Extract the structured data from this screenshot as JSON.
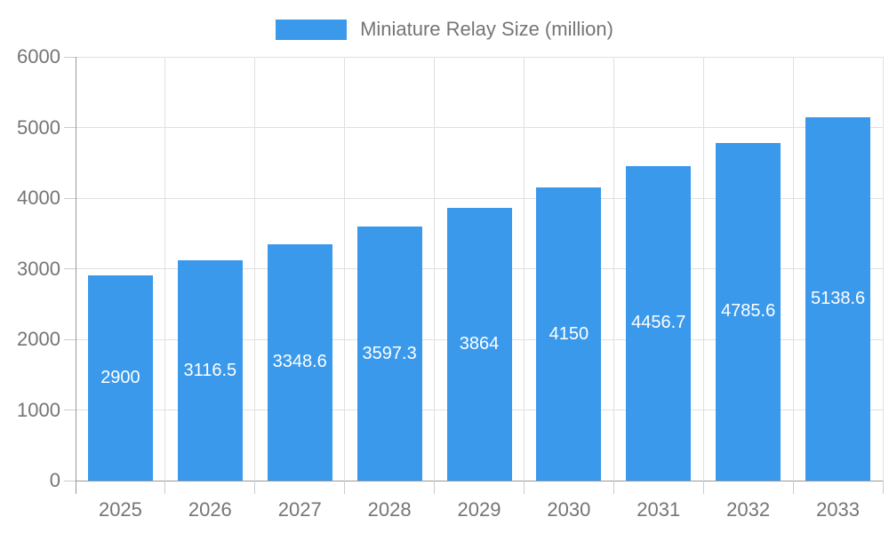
{
  "legend": {
    "label": "Miniature Relay Size (million)"
  },
  "colors": {
    "bar": "#3b99ec",
    "axis": "#999999",
    "gridline": "#e0e0e0",
    "tick": "#cccccc",
    "axis_label_text": "#757575",
    "value_label_text": "#ffffff",
    "background": "#ffffff"
  },
  "chart_data": {
    "type": "bar",
    "title": "",
    "xlabel": "",
    "ylabel": "",
    "series_name": "Miniature Relay Size (million)",
    "categories": [
      "2025",
      "2026",
      "2027",
      "2028",
      "2029",
      "2030",
      "2031",
      "2032",
      "2033"
    ],
    "values": [
      2900,
      3116.5,
      3348.6,
      3597.3,
      3864,
      4150,
      4456.7,
      4785.6,
      5138.6
    ],
    "ylim": [
      0,
      6000
    ],
    "yticks": [
      0,
      1000,
      2000,
      3000,
      4000,
      5000,
      6000
    ],
    "grid": true,
    "legend_position": "top",
    "bar_label_position": "inside-center"
  }
}
